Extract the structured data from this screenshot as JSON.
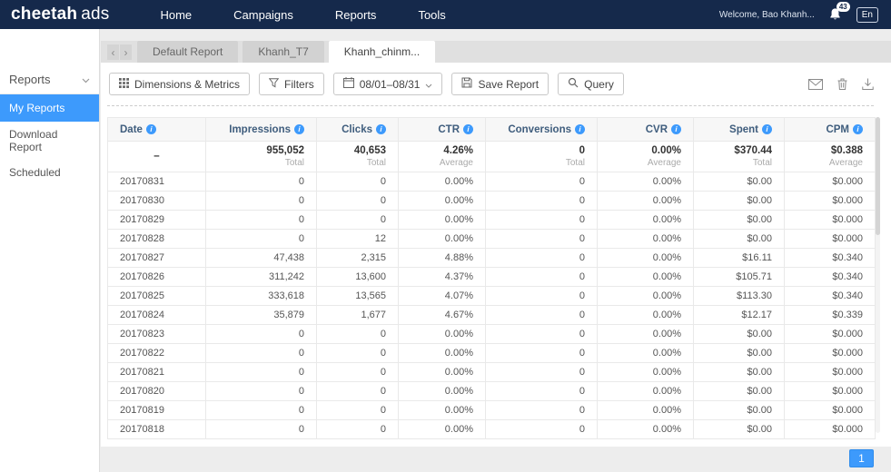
{
  "navbar": {
    "brand_bold": "cheetah",
    "brand_light": "ads",
    "items": [
      {
        "label": "Home"
      },
      {
        "label": "Campaigns"
      },
      {
        "label": "Reports"
      },
      {
        "label": "Tools"
      }
    ],
    "welcome": "Welcome,  Bao Khanh...",
    "notification_count": "43",
    "language": "En"
  },
  "sidebar": {
    "section": "Reports",
    "items": [
      {
        "label": "My Reports",
        "active": true
      },
      {
        "label": "Download Report",
        "active": false
      },
      {
        "label": "Scheduled",
        "active": false
      }
    ]
  },
  "tabs": [
    {
      "label": "Default Report",
      "active": false
    },
    {
      "label": "Khanh_T7",
      "active": false
    },
    {
      "label": "Khanh_chinm...",
      "active": true
    }
  ],
  "toolbar": {
    "dimensions_metrics_label": "Dimensions & Metrics",
    "filters_label": "Filters",
    "date_range_label": "08/01–08/31",
    "save_report_label": "Save Report",
    "query_label": "Query"
  },
  "icons": {
    "back": "‹",
    "forward": "›",
    "info": "i"
  },
  "colors": {
    "accent_blue": "#3d9afc",
    "navbar_bg": "#15294b"
  },
  "table": {
    "columns": [
      "Date",
      "Impressions",
      "Clicks",
      "CTR",
      "Conversions",
      "CVR",
      "Spent",
      "CPM"
    ],
    "summary": {
      "values": [
        "–",
        "955,052",
        "40,653",
        "4.26%",
        "0",
        "0.00%",
        "$370.44",
        "$0.388"
      ],
      "sublabels": [
        "",
        "Total",
        "Total",
        "Average",
        "Total",
        "Average",
        "Total",
        "Average"
      ]
    },
    "rows": [
      [
        "20170831",
        "0",
        "0",
        "0.00%",
        "0",
        "0.00%",
        "$0.00",
        "$0.000"
      ],
      [
        "20170830",
        "0",
        "0",
        "0.00%",
        "0",
        "0.00%",
        "$0.00",
        "$0.000"
      ],
      [
        "20170829",
        "0",
        "0",
        "0.00%",
        "0",
        "0.00%",
        "$0.00",
        "$0.000"
      ],
      [
        "20170828",
        "0",
        "12",
        "0.00%",
        "0",
        "0.00%",
        "$0.00",
        "$0.000"
      ],
      [
        "20170827",
        "47,438",
        "2,315",
        "4.88%",
        "0",
        "0.00%",
        "$16.11",
        "$0.340"
      ],
      [
        "20170826",
        "311,242",
        "13,600",
        "4.37%",
        "0",
        "0.00%",
        "$105.71",
        "$0.340"
      ],
      [
        "20170825",
        "333,618",
        "13,565",
        "4.07%",
        "0",
        "0.00%",
        "$113.30",
        "$0.340"
      ],
      [
        "20170824",
        "35,879",
        "1,677",
        "4.67%",
        "0",
        "0.00%",
        "$12.17",
        "$0.339"
      ],
      [
        "20170823",
        "0",
        "0",
        "0.00%",
        "0",
        "0.00%",
        "$0.00",
        "$0.000"
      ],
      [
        "20170822",
        "0",
        "0",
        "0.00%",
        "0",
        "0.00%",
        "$0.00",
        "$0.000"
      ],
      [
        "20170821",
        "0",
        "0",
        "0.00%",
        "0",
        "0.00%",
        "$0.00",
        "$0.000"
      ],
      [
        "20170820",
        "0",
        "0",
        "0.00%",
        "0",
        "0.00%",
        "$0.00",
        "$0.000"
      ],
      [
        "20170819",
        "0",
        "0",
        "0.00%",
        "0",
        "0.00%",
        "$0.00",
        "$0.000"
      ],
      [
        "20170818",
        "0",
        "0",
        "0.00%",
        "0",
        "0.00%",
        "$0.00",
        "$0.000"
      ]
    ]
  },
  "pagination": {
    "current_page": "1"
  }
}
